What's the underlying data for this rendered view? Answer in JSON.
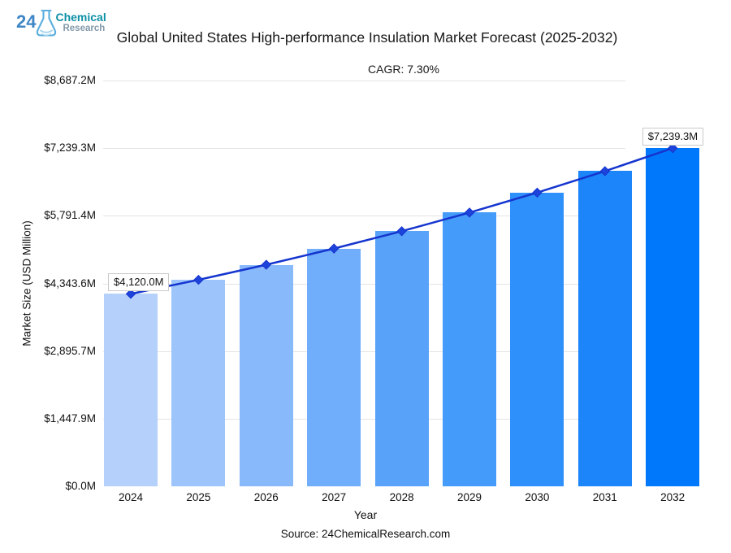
{
  "logo": {
    "prefix": "24",
    "name_line1": "Chemical",
    "name_line2": "Research"
  },
  "chart_data": {
    "type": "bar",
    "line_overlay": true,
    "title": "Global United States High-performance Insulation Market Forecast (2025-2032)",
    "subtitle": "CAGR: 7.30%",
    "categories": [
      "2024",
      "2025",
      "2026",
      "2027",
      "2028",
      "2029",
      "2030",
      "2031",
      "2032"
    ],
    "values": [
      4120.0,
      4420.8,
      4743.5,
      5089.7,
      5461.3,
      5860.0,
      6287.7,
      6746.7,
      7239.3
    ],
    "xlabel": "Year",
    "ylabel": "Market Size (USD Million)",
    "ylim": [
      0,
      8687.2
    ],
    "ytick_labels": [
      "$0.0M",
      "$1,447.9M",
      "$2,895.7M",
      "$4,343.6M",
      "$5,791.4M",
      "$7,239.3M",
      "$8,687.2M"
    ],
    "ytick_values": [
      0,
      1447.9,
      2895.7,
      4343.6,
      5791.4,
      7239.3,
      8687.2
    ],
    "grid": "horizontal",
    "legend": "none",
    "bar_colors": [
      "#b5d0fa",
      "#9dc5fb",
      "#88b9fb",
      "#70adfa",
      "#58a2f9",
      "#459bfa",
      "#2e90fa",
      "#1c85fa",
      "#0078fb"
    ],
    "line_color": "#1535cf",
    "marker_color": "#1e43da",
    "annotations": [
      {
        "text": "$4,120.0M",
        "category": "2024"
      },
      {
        "text": "$7,239.3M",
        "category": "2032"
      }
    ]
  },
  "footer": {
    "source_text": "Source: 24ChemicalResearch.com"
  }
}
